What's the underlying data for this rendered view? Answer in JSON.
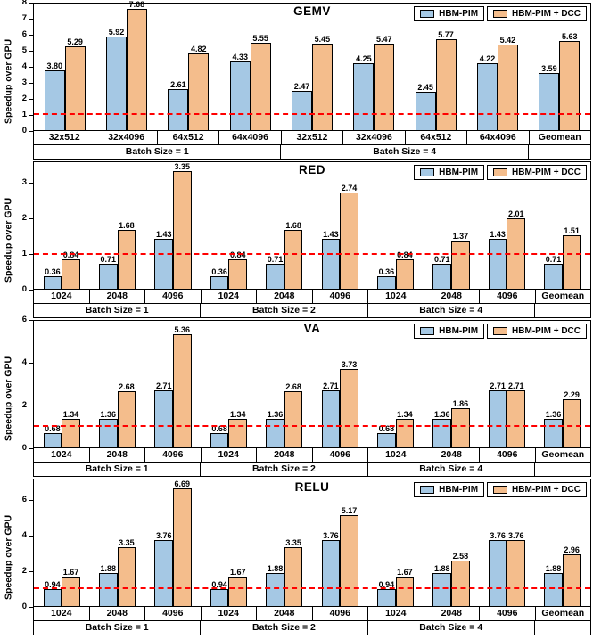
{
  "colors": {
    "hbm_pim": "#a5c8e4",
    "hbm_pim_dcc": "#f4bd8c",
    "reference_line": "#ff0000",
    "bar_border": "#000000"
  },
  "chart_data": [
    {
      "id": "gemv",
      "type": "bar",
      "title": "GEMV",
      "ylabel": "Speedup over GPU",
      "ylim": [
        0,
        8
      ],
      "yticks": [
        0,
        1,
        2,
        3,
        4,
        5,
        6,
        7,
        8
      ],
      "ref_line": 1,
      "legend_position": "top-right",
      "categories": [
        "32x512",
        "32x4096",
        "64x512",
        "64x4096",
        "32x512",
        "32x4096",
        "64x512",
        "64x4096",
        "Geomean"
      ],
      "batch_groups": [
        {
          "label": "Batch Size = 1",
          "span": 4
        },
        {
          "label": "Batch Size = 4",
          "span": 4
        },
        {
          "label": "",
          "span": 1
        }
      ],
      "series": [
        {
          "name": "HBM-PIM",
          "color": "#a5c8e4",
          "values": [
            3.8,
            5.92,
            2.61,
            4.33,
            2.47,
            4.25,
            2.45,
            4.22,
            3.59
          ]
        },
        {
          "name": "HBM-PIM + DCC",
          "color": "#f4bd8c",
          "values": [
            5.29,
            7.68,
            4.82,
            5.55,
            5.45,
            5.47,
            5.77,
            5.42,
            5.63
          ]
        }
      ]
    },
    {
      "id": "red",
      "type": "bar",
      "title": "RED",
      "ylabel": "Speedup over GPU",
      "ylim": [
        0,
        3.6
      ],
      "yticks": [
        0,
        1,
        2,
        3
      ],
      "ref_line": 1,
      "legend_position": "top-right",
      "categories": [
        "1024",
        "2048",
        "4096",
        "1024",
        "2048",
        "4096",
        "1024",
        "2048",
        "4096",
        "Geomean"
      ],
      "batch_groups": [
        {
          "label": "Batch Size = 1",
          "span": 3
        },
        {
          "label": "Batch Size = 2",
          "span": 3
        },
        {
          "label": "Batch Size = 4",
          "span": 3
        },
        {
          "label": "",
          "span": 1
        }
      ],
      "series": [
        {
          "name": "HBM-PIM",
          "color": "#a5c8e4",
          "values": [
            0.36,
            0.71,
            1.43,
            0.36,
            0.71,
            1.43,
            0.36,
            0.71,
            1.43,
            0.71
          ]
        },
        {
          "name": "HBM-PIM + DCC",
          "color": "#f4bd8c",
          "values": [
            0.84,
            1.68,
            3.35,
            0.84,
            1.68,
            2.74,
            0.84,
            1.37,
            2.01,
            1.51
          ]
        }
      ]
    },
    {
      "id": "va",
      "type": "bar",
      "title": "VA",
      "ylabel": "Speedup over GPU",
      "ylim": [
        0,
        6
      ],
      "yticks": [
        0,
        2,
        4,
        6
      ],
      "ref_line": 1,
      "legend_position": "top-right",
      "categories": [
        "1024",
        "2048",
        "4096",
        "1024",
        "2048",
        "4096",
        "1024",
        "2048",
        "4096",
        "Geomean"
      ],
      "batch_groups": [
        {
          "label": "Batch Size = 1",
          "span": 3
        },
        {
          "label": "Batch Size = 2",
          "span": 3
        },
        {
          "label": "Batch Size = 4",
          "span": 3
        },
        {
          "label": "",
          "span": 1
        }
      ],
      "series": [
        {
          "name": "HBM-PIM",
          "color": "#a5c8e4",
          "values": [
            0.68,
            1.36,
            2.71,
            0.68,
            1.36,
            2.71,
            0.68,
            1.36,
            2.71,
            1.36
          ]
        },
        {
          "name": "HBM-PIM + DCC",
          "color": "#f4bd8c",
          "values": [
            1.34,
            2.68,
            5.36,
            1.34,
            2.68,
            3.73,
            1.34,
            1.86,
            2.71,
            2.29
          ]
        }
      ]
    },
    {
      "id": "relu",
      "type": "bar",
      "title": "RELU",
      "ylabel": "Speedup over GPU",
      "ylim": [
        0,
        7.2
      ],
      "yticks": [
        0,
        2,
        4,
        6
      ],
      "ref_line": 1,
      "legend_position": "top-right",
      "categories": [
        "1024",
        "2048",
        "4096",
        "1024",
        "2048",
        "4096",
        "1024",
        "2048",
        "4096",
        "Geomean"
      ],
      "batch_groups": [
        {
          "label": "Batch Size = 1",
          "span": 3
        },
        {
          "label": "Batch Size = 2",
          "span": 3
        },
        {
          "label": "Batch Size = 4",
          "span": 3
        },
        {
          "label": "",
          "span": 1
        }
      ],
      "series": [
        {
          "name": "HBM-PIM",
          "color": "#a5c8e4",
          "values": [
            0.94,
            1.88,
            3.76,
            0.94,
            1.88,
            3.76,
            0.94,
            1.88,
            3.76,
            1.88
          ]
        },
        {
          "name": "HBM-PIM + DCC",
          "color": "#f4bd8c",
          "values": [
            1.67,
            3.35,
            6.69,
            1.67,
            3.35,
            5.17,
            1.67,
            2.58,
            3.76,
            2.96
          ]
        }
      ]
    }
  ]
}
